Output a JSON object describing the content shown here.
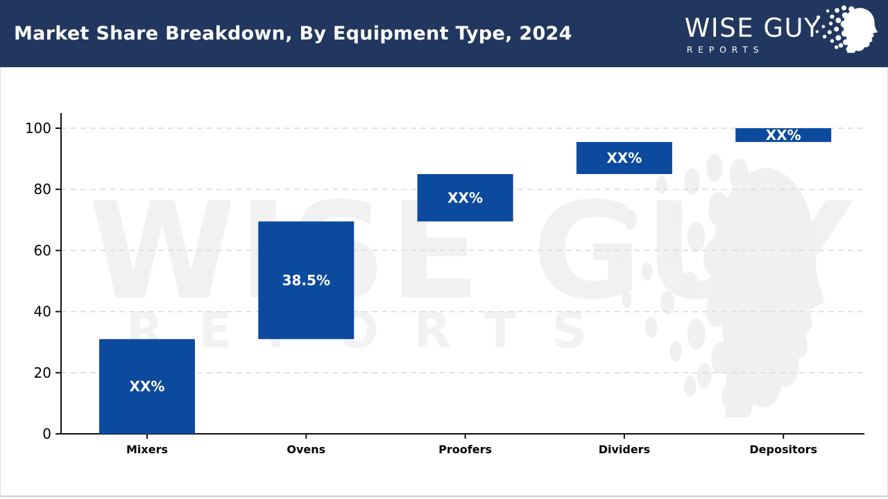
{
  "header": {
    "title": "Market Share Breakdown, By Equipment Type, 2024",
    "bg_color": "#21375F",
    "logo": {
      "line1": "WISE GUY",
      "line2": "REPORTS"
    }
  },
  "watermark": {
    "line1": "WISE GUY",
    "line2": "REPORTS"
  },
  "chart_data": {
    "type": "bar",
    "subtype": "waterfall (floating cumulative segments)",
    "title": "Market Share Breakdown, By Equipment Type, 2024",
    "categories": [
      "Mixers",
      "Ovens",
      "Proofers",
      "Dividers",
      "Depositors"
    ],
    "segments": [
      {
        "category": "Mixers",
        "start": 0,
        "end": 31,
        "value": 31,
        "label": "XX%"
      },
      {
        "category": "Ovens",
        "start": 31,
        "end": 69.5,
        "value": 38.5,
        "label": "38.5%"
      },
      {
        "category": "Proofers",
        "start": 69.5,
        "end": 85,
        "value": 15.5,
        "label": "XX%"
      },
      {
        "category": "Dividers",
        "start": 85,
        "end": 95.5,
        "value": 10.5,
        "label": "XX%"
      },
      {
        "category": "Depositors",
        "start": 95.5,
        "end": 100,
        "value": 4.5,
        "label": "XX%"
      }
    ],
    "ylim": [
      0,
      100
    ],
    "yticks": [
      0,
      20,
      40,
      60,
      80,
      100
    ],
    "xlabel": "",
    "ylabel": "",
    "grid": "horizontal-dashed",
    "grid_color": "#d9d9d9",
    "axis_color": "#111111",
    "bar_color": "#0C4A9E",
    "bar_label_color": "#ffffff",
    "tick_label_color": "#000000",
    "legend": "none"
  }
}
